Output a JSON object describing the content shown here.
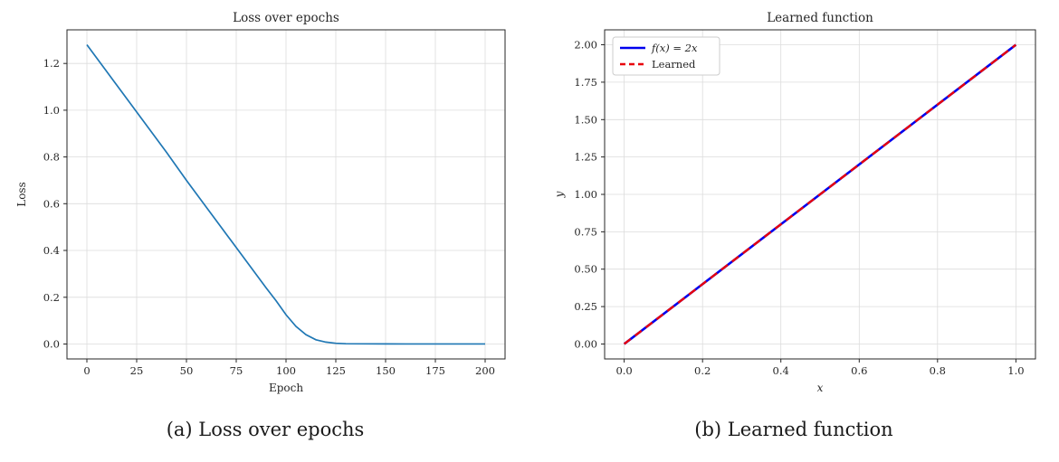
{
  "figure": {
    "captions": {
      "a": "(a) Loss over epochs",
      "b": "(b) Learned function"
    }
  },
  "chart_data": [
    {
      "type": "line",
      "title": "Loss over epochs",
      "xlabel": "Epoch",
      "ylabel": "Loss",
      "xlabel_italic": false,
      "ylabel_italic": false,
      "xlim": [
        -10,
        210
      ],
      "ylim": [
        -0.064,
        1.344
      ],
      "xticks": [
        0,
        25,
        50,
        75,
        100,
        125,
        150,
        175,
        200
      ],
      "xtick_labels": [
        "0",
        "25",
        "50",
        "75",
        "100",
        "125",
        "150",
        "175",
        "200"
      ],
      "yticks": [
        0.0,
        0.2,
        0.4,
        0.6,
        0.8,
        1.0,
        1.2
      ],
      "ytick_labels": [
        "0.0",
        "0.2",
        "0.4",
        "0.6",
        "0.8",
        "1.0",
        "1.2"
      ],
      "grid": true,
      "grid_color": "#dcdcdc",
      "legend": null,
      "series": [
        {
          "name": "loss",
          "color": "#1f77b4",
          "width": 1.7,
          "dash": null,
          "x": [
            0,
            10,
            20,
            30,
            40,
            50,
            60,
            70,
            80,
            90,
            95,
            100,
            105,
            110,
            115,
            120,
            125,
            130,
            140,
            150,
            160,
            170,
            180,
            190,
            200
          ],
          "y": [
            1.28,
            1.165,
            1.05,
            0.935,
            0.82,
            0.7,
            0.585,
            0.47,
            0.355,
            0.24,
            0.185,
            0.125,
            0.075,
            0.04,
            0.018,
            0.008,
            0.003,
            0.001,
            0.0005,
            0.0002,
            0.0001,
            0.0,
            0.0,
            0.0,
            0.0
          ]
        }
      ]
    },
    {
      "type": "line",
      "title": "Learned function",
      "xlabel": "x",
      "ylabel": "y",
      "xlabel_italic": true,
      "ylabel_italic": true,
      "xlim": [
        -0.05,
        1.05
      ],
      "ylim": [
        -0.1,
        2.1
      ],
      "xticks": [
        0.0,
        0.2,
        0.4,
        0.6,
        0.8,
        1.0
      ],
      "xtick_labels": [
        "0.0",
        "0.2",
        "0.4",
        "0.6",
        "0.8",
        "1.0"
      ],
      "yticks": [
        0.0,
        0.25,
        0.5,
        0.75,
        1.0,
        1.25,
        1.5,
        1.75,
        2.0
      ],
      "ytick_labels": [
        "0.00",
        "0.25",
        "0.50",
        "0.75",
        "1.00",
        "1.25",
        "1.50",
        "1.75",
        "2.00"
      ],
      "grid": true,
      "grid_color": "#dcdcdc",
      "legend": {
        "position": "upper-left",
        "entries": [
          {
            "label": "f(x) = 2x",
            "italic": true
          },
          {
            "label": "Learned",
            "italic": false
          }
        ]
      },
      "series": [
        {
          "name": "f(x) = 2x",
          "color": "#0000ee",
          "width": 2.6,
          "dash": null,
          "x": [
            0,
            1
          ],
          "y": [
            0,
            2
          ]
        },
        {
          "name": "Learned",
          "color": "#e8000b",
          "width": 2.4,
          "dash": "9,6",
          "x": [
            0,
            1
          ],
          "y": [
            0,
            2
          ]
        }
      ]
    }
  ]
}
